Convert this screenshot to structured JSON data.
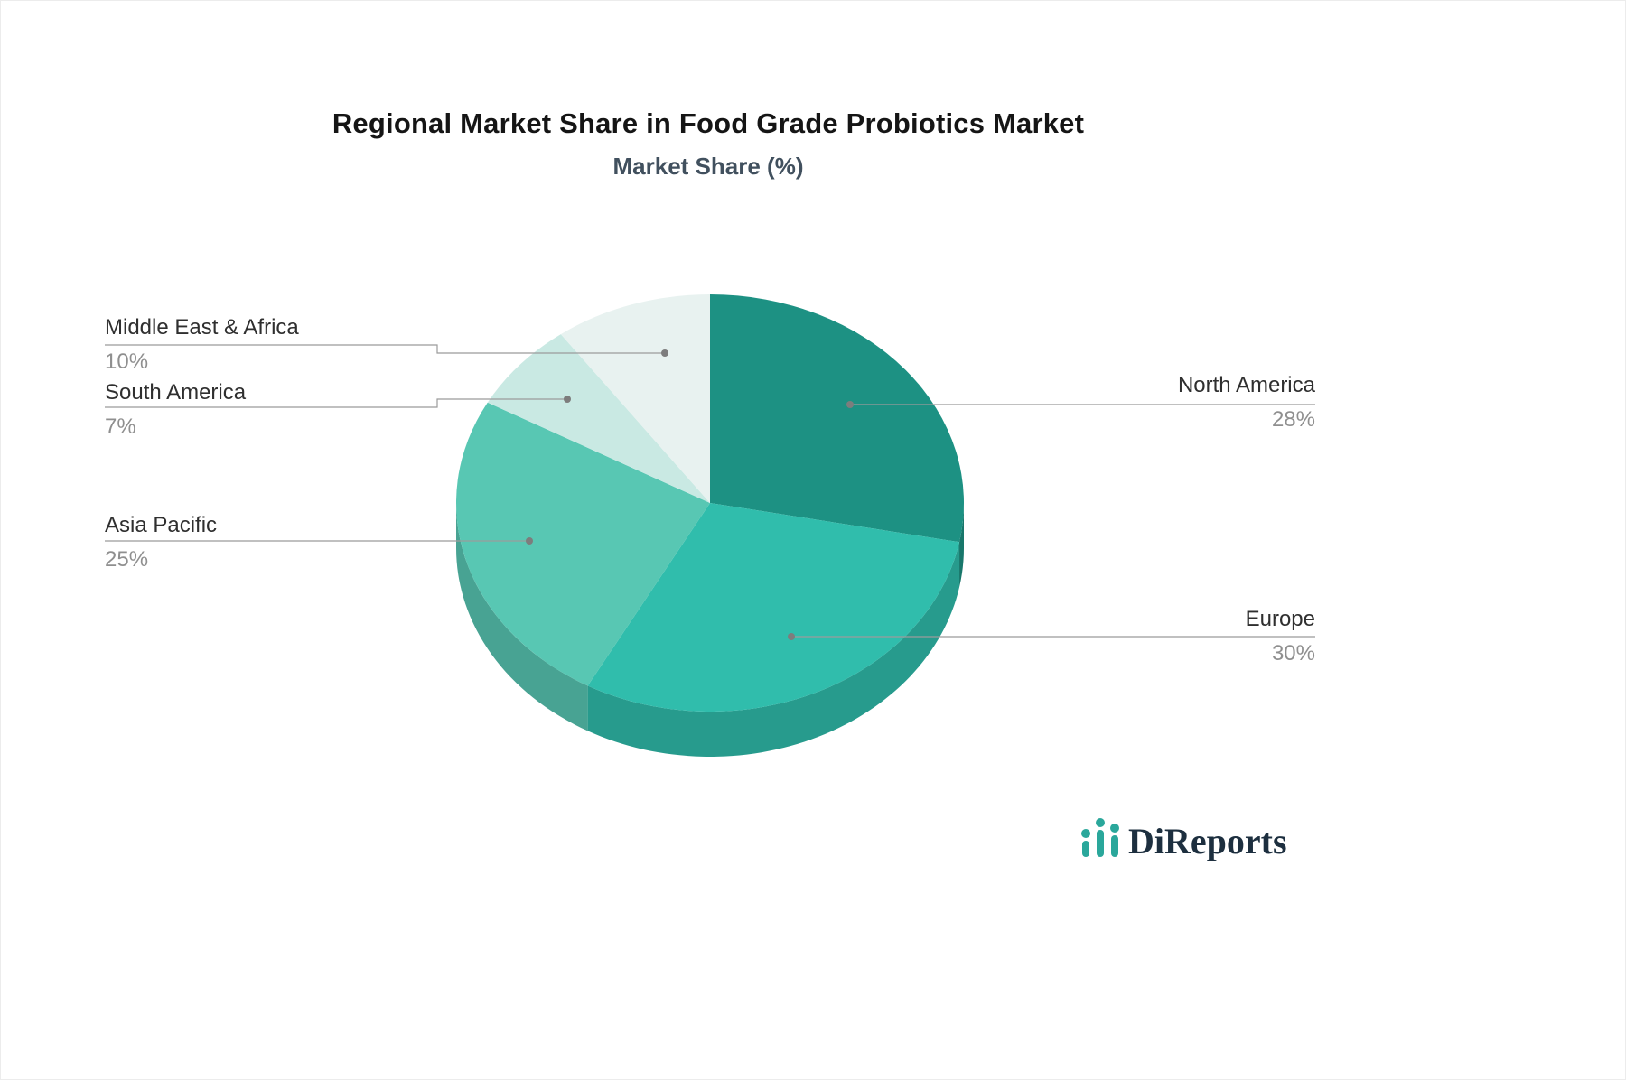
{
  "chart_data": {
    "type": "pie",
    "title": "Regional Market Share in Food Grade Probiotics Market",
    "subtitle": "Market Share (%)",
    "unit": "%",
    "direction": "clockwise",
    "start_angle_deg": 0,
    "effect_3d": true,
    "legend_position": "callout-labels",
    "categories": [
      "North America",
      "Europe",
      "Asia Pacific",
      "South America",
      "Middle East & Africa"
    ],
    "values": [
      28,
      30,
      25,
      7,
      10
    ],
    "labels_pct": [
      "28%",
      "30%",
      "25%",
      "7%",
      "10%"
    ],
    "colors": [
      "#1d9183",
      "#30bdac",
      "#58c7b3",
      "#c9e9e3",
      "#e8f2f0"
    ]
  },
  "callout_style": {
    "line_color": "#9b9b9b",
    "dot_color": "#7d7d7d",
    "label_color": "#2f2f2f",
    "percent_color": "#8f8f8f"
  },
  "logo": {
    "text": "DiReports",
    "accent_color": "#2aa79b",
    "text_color": "#1d2f3f"
  }
}
